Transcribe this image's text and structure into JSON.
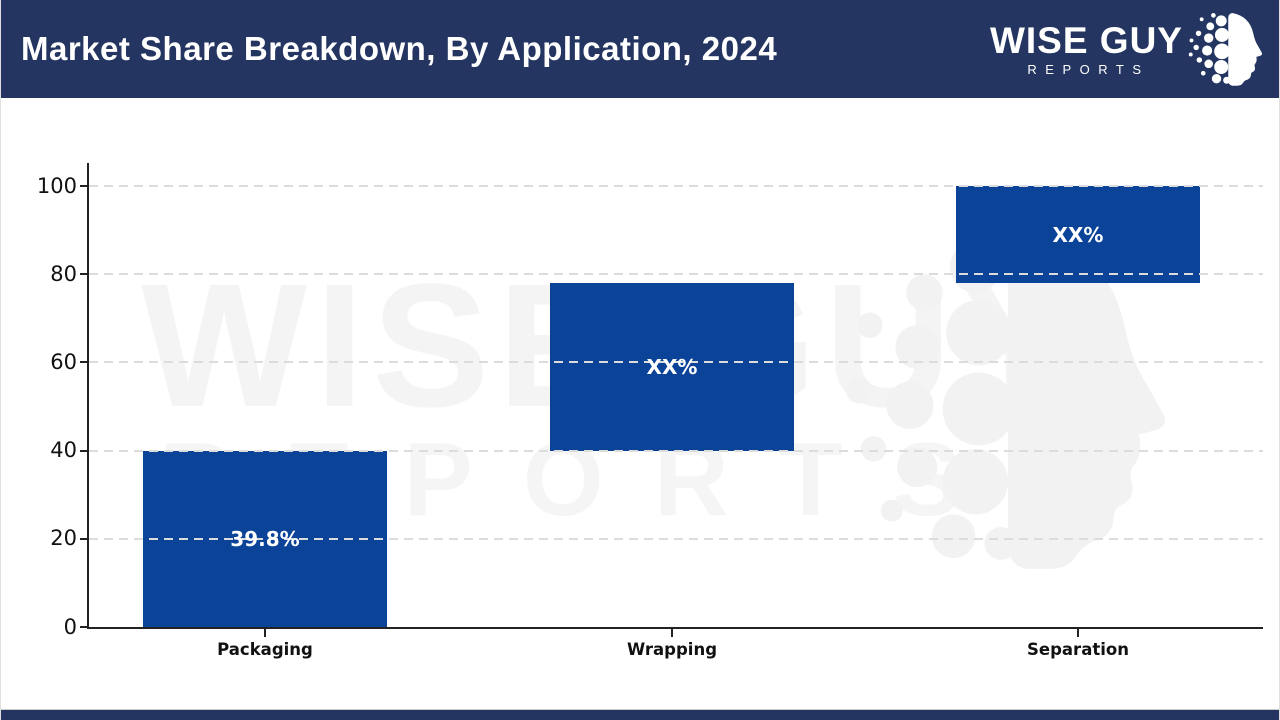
{
  "header": {
    "title": "Market Share Breakdown, By Application, 2024",
    "logo": {
      "line1": "WISE GUY",
      "line2": "REPORTS"
    }
  },
  "watermark": {
    "line1": "WISE GUY",
    "line2": "REPORTS"
  },
  "chart_data": {
    "type": "bar",
    "subtype": "floating-waterfall",
    "title": "Market Share Breakdown, By Application, 2024",
    "categories": [
      "Packaging",
      "Wrapping",
      "Separation"
    ],
    "bars": [
      {
        "category": "Packaging",
        "start": 0,
        "end": 39.8,
        "label": "39.8%"
      },
      {
        "category": "Wrapping",
        "start": 39.8,
        "end": 78.0,
        "label": "XX%"
      },
      {
        "category": "Separation",
        "start": 78.0,
        "end": 100.0,
        "label": "XX%"
      }
    ],
    "xlabel": "",
    "ylabel": "",
    "yticks": [
      0,
      20,
      40,
      60,
      80,
      100
    ],
    "ylim": [
      0,
      106
    ],
    "grid": "dashed-horizontal",
    "legend": "none"
  },
  "colors": {
    "header_navy": "#233560",
    "bar_blue": "#0b4399",
    "gridline": "#dcdcdc",
    "axis": "#222222",
    "value_label": "#ffffff",
    "watermark_gray": "#f4f4f4"
  }
}
